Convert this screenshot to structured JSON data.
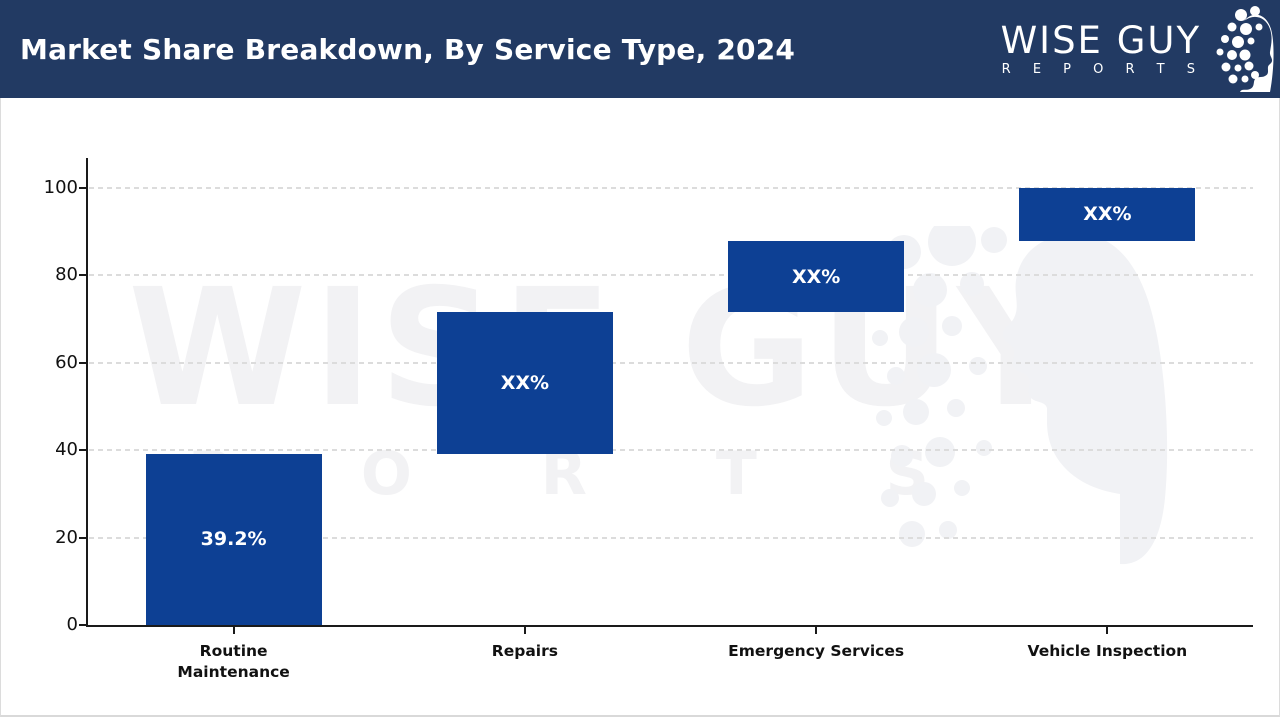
{
  "header": {
    "title": "Market Share Breakdown, By Service Type, 2024",
    "bg_color": "#223a63",
    "logo": {
      "line1": "WISE GUY",
      "line2": "R E P O R T S"
    }
  },
  "watermark": {
    "line1": "WISE GUY",
    "line2": "P O R T S"
  },
  "chart_data": {
    "type": "bar",
    "subtype": "waterfall",
    "title": "Market Share Breakdown, By Service Type, 2024",
    "xlabel": "",
    "ylabel": "",
    "categories": [
      "Routine\nMaintenance",
      "Repairs",
      "Emergency Services",
      "Vehicle Inspection"
    ],
    "segments": [
      {
        "category": "Routine Maintenance",
        "start": 0,
        "end": 39.2,
        "value": 39.2,
        "label": "39.2%"
      },
      {
        "category": "Repairs",
        "start": 39.2,
        "end": 71.5,
        "value": 32.3,
        "label": "XX%"
      },
      {
        "category": "Emergency Services",
        "start": 71.5,
        "end": 87.8,
        "value": 16.3,
        "label": "XX%"
      },
      {
        "category": "Vehicle Inspection",
        "start": 87.8,
        "end": 100,
        "value": 12.2,
        "label": "XX%"
      }
    ],
    "yticks": [
      0,
      20,
      40,
      60,
      80,
      100
    ],
    "ylim": [
      0,
      106.5
    ],
    "grid": "dashed horizontal, light gray",
    "legend": "none",
    "bar_color": "#0d4094",
    "bar_label_color": "#ffffff",
    "axis_color": "#1a1a1a"
  }
}
